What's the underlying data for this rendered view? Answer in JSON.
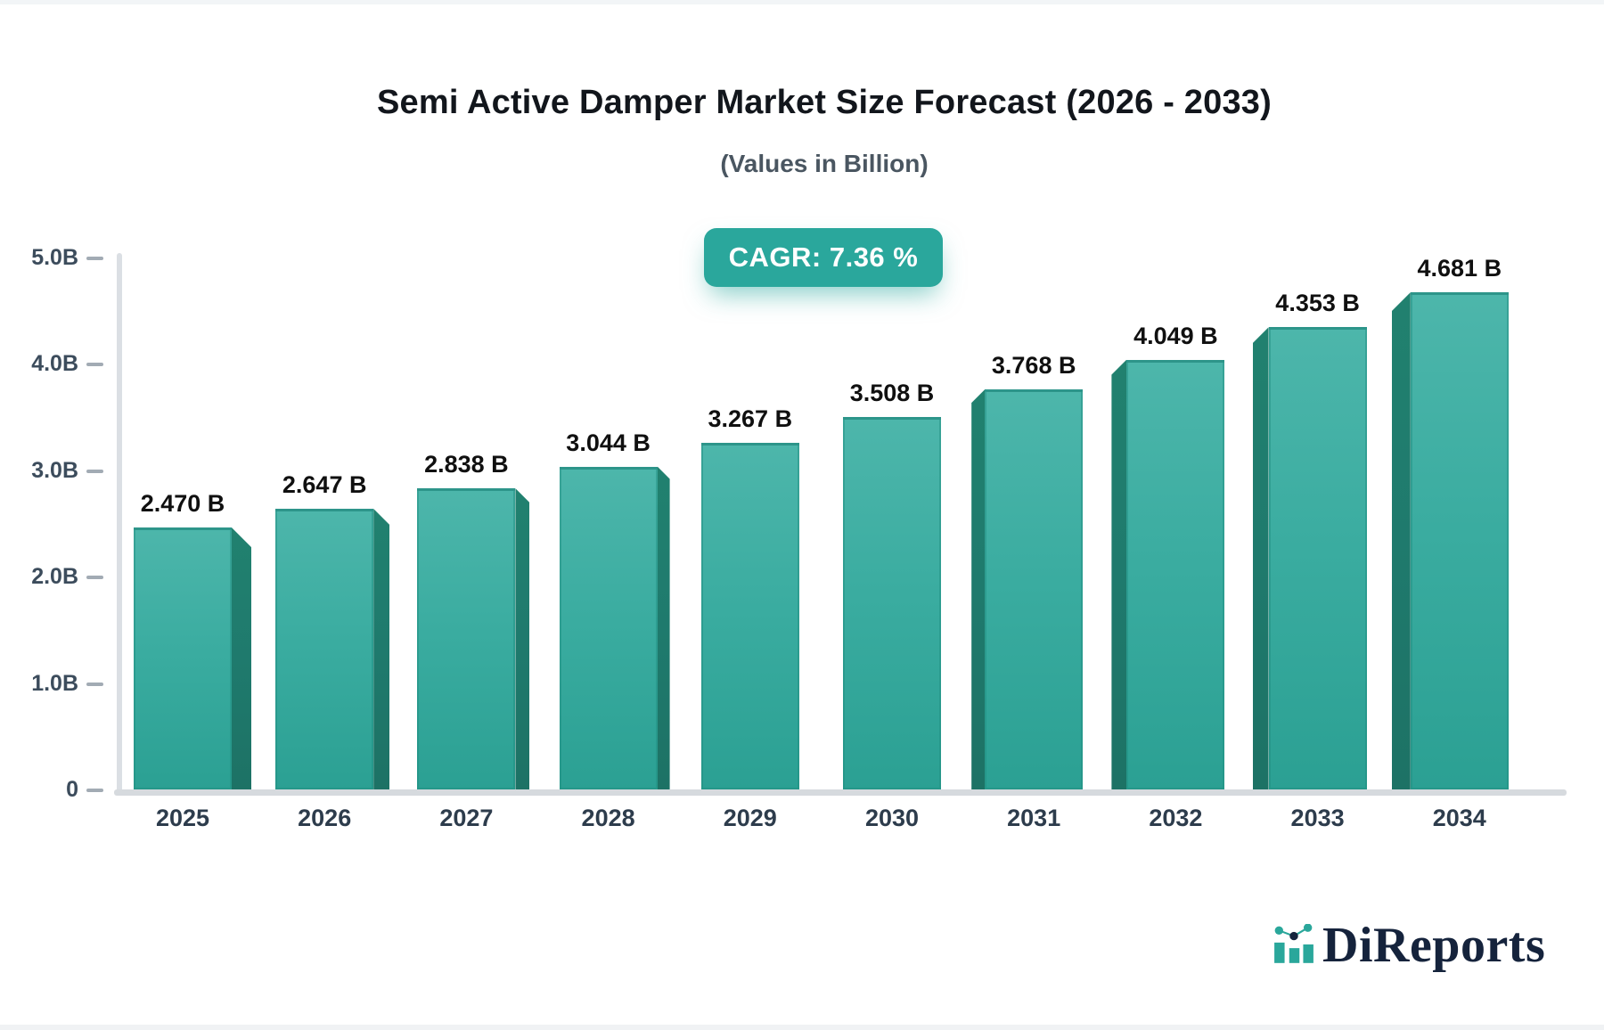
{
  "header": {
    "title": "Semi Active Damper Market Size Forecast (2026 - 2033)",
    "subtitle": "(Values in Billion)",
    "cagr_badge": "CAGR: 7.36 %"
  },
  "watermark": {
    "brand": "DiReports",
    "icon": "mini-bar-line-chart-logo"
  },
  "colors": {
    "bar_face_top": "#4db6ab",
    "bar_face_bottom": "#2ba093",
    "bar_side": "#1f7a6d",
    "badge": "#2aa79c",
    "axis": "#d6dade",
    "tick_text": "#3c4c5c",
    "label_text": "#101010",
    "title_text": "#12161c",
    "logo_text": "#15233c"
  },
  "chart_data": {
    "type": "bar",
    "title": "Semi Active Damper Market Size Forecast (2026 - 2033)",
    "subtitle": "(Values in Billion)",
    "cagr_percent": 7.36,
    "categories": [
      "2025",
      "2026",
      "2027",
      "2028",
      "2029",
      "2030",
      "2031",
      "2032",
      "2033",
      "2034"
    ],
    "values": [
      2.47,
      2.647,
      2.838,
      3.044,
      3.267,
      3.508,
      3.768,
      4.049,
      4.353,
      4.681
    ],
    "labels": [
      "2.470 B",
      "2.647 B",
      "2.838 B",
      "3.044 B",
      "3.267 B",
      "3.508 B",
      "3.768 B",
      "4.049 B",
      "4.353 B",
      "4.681 B"
    ],
    "unit": "Billion",
    "xlabel": "",
    "ylabel": "",
    "ylim": [
      0,
      5
    ],
    "grid": false,
    "legend": null,
    "yticks": [
      {
        "value": 5,
        "label": "5.0B"
      },
      {
        "value": 4,
        "label": "4.0B"
      },
      {
        "value": 3,
        "label": "3.0B"
      },
      {
        "value": 2,
        "label": "2.0B"
      },
      {
        "value": 1,
        "label": "1.0B"
      },
      {
        "value": 0,
        "label": "0"
      }
    ]
  }
}
